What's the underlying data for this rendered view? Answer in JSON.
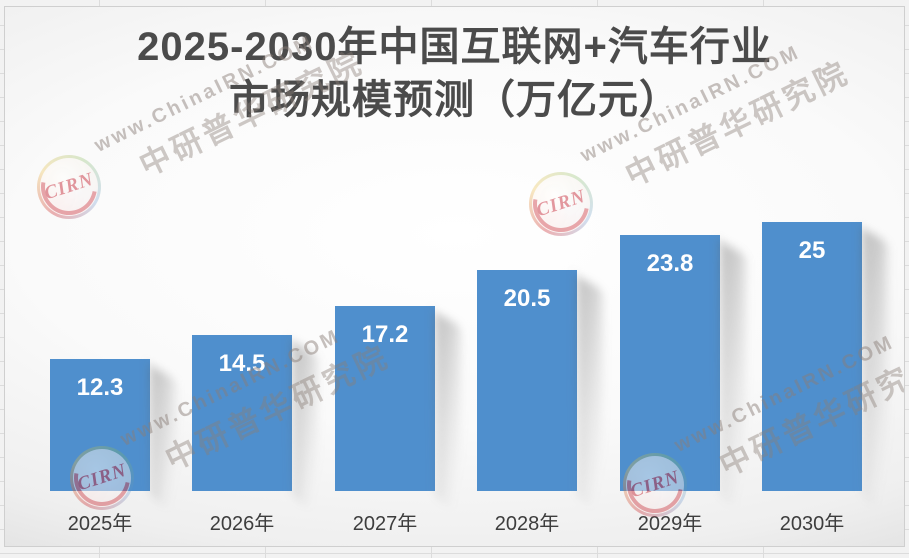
{
  "title": {
    "line1": "2025-2030年中国互联网+汽车行业",
    "line2": "市场规模预测（万亿元）"
  },
  "chart_data": {
    "type": "bar",
    "title": "2025-2030年中国互联网+汽车行业市场规模预测（万亿元）",
    "categories": [
      "2025年",
      "2026年",
      "2027年",
      "2028年",
      "2029年",
      "2030年"
    ],
    "values": [
      12.3,
      14.5,
      17.2,
      20.5,
      23.8,
      25
    ],
    "value_labels": [
      "12.3",
      "14.5",
      "17.2",
      "20.5",
      "23.8",
      "25"
    ],
    "unit": "万亿元",
    "xlabel": "",
    "ylabel": "",
    "ylim": [
      0,
      27
    ],
    "grid": false,
    "legend": false,
    "bar_color": "#4f8fcd",
    "value_label_color": "#ffffff"
  },
  "watermark": {
    "logo_text": "CIRN",
    "line1": "www.ChinaIRN.COM",
    "line2": "中研普华研究院"
  },
  "colors": {
    "title_text": "#4b4b4b",
    "axis_label": "#3d3d3d",
    "bar": "#4f8fcd",
    "panel_border": "#cfcfcf"
  }
}
